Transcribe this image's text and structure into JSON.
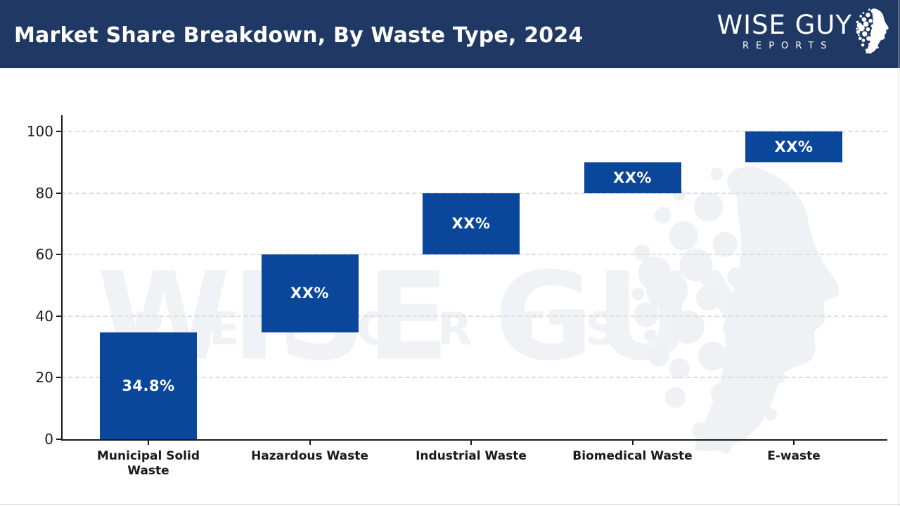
{
  "header": {
    "title": "Market Share Breakdown, By Waste Type, 2024",
    "brand": {
      "name": "WISE GUY",
      "subname": "REPORTS"
    }
  },
  "watermark": {
    "line1": "WISE GUY",
    "line2": "REPORTS"
  },
  "colors": {
    "header_bg": "#1f3864",
    "bar": "#0a4699",
    "bar_label": "#ffffff",
    "grid": "#dcdddf",
    "axis": "#1a1a1a",
    "watermark": "#f1f2f5"
  },
  "chart_data": {
    "type": "bar",
    "subtype": "waterfall",
    "title": "Market Share Breakdown, By Waste Type, 2024",
    "categories": [
      "Municipal Solid Waste",
      "Hazardous Waste",
      "Industrial Waste",
      "Biomedical Waste",
      "E-waste"
    ],
    "segments": [
      {
        "category": "Municipal Solid Waste",
        "start": 0,
        "end": 34.8,
        "label": "34.8%"
      },
      {
        "category": "Hazardous Waste",
        "start": 34.8,
        "end": 60,
        "label": "XX%"
      },
      {
        "category": "Industrial Waste",
        "start": 60,
        "end": 80,
        "label": "XX%"
      },
      {
        "category": "Biomedical Waste",
        "start": 80,
        "end": 90,
        "label": "XX%"
      },
      {
        "category": "E-waste",
        "start": 90,
        "end": 100,
        "label": "XX%"
      }
    ],
    "yticks": [
      0,
      20,
      40,
      60,
      80,
      100
    ],
    "ylim": [
      0,
      100
    ],
    "xlabel": "",
    "ylabel": "",
    "grid": "dashed-horizontal",
    "legend": "none",
    "values_masked_as": "XX%"
  }
}
